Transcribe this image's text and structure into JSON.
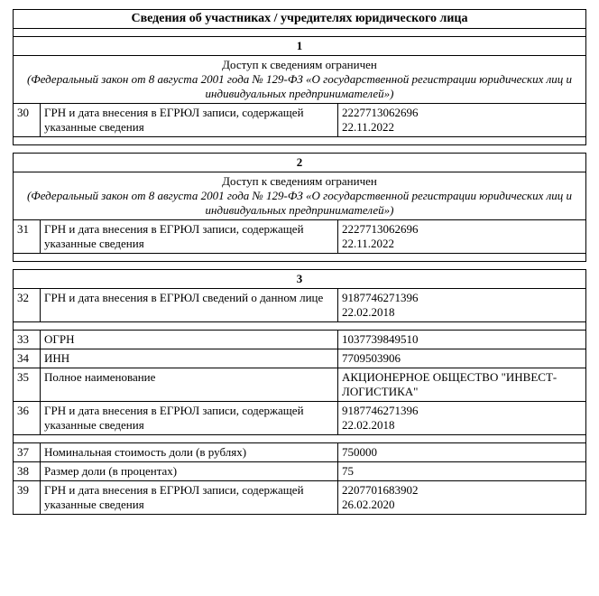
{
  "title": "Сведения об участниках / учредителях юридического лица",
  "restricted_heading": "Доступ к сведениям ограничен",
  "restricted_note": "(Федеральный закон от 8 августа 2001 года № 129-ФЗ «О государственной регистрации юридических лиц и индивидуальных предпринимателей»)",
  "p1": {
    "num": "1",
    "row30": {
      "n": "30",
      "label": "ГРН и дата внесения в ЕГРЮЛ записи, содержащей указанные сведения",
      "v1": "2227713062696",
      "v2": "22.11.2022"
    }
  },
  "p2": {
    "num": "2",
    "row31": {
      "n": "31",
      "label": "ГРН и дата внесения в ЕГРЮЛ записи, содержащей указанные сведения",
      "v1": "2227713062696",
      "v2": "22.11.2022"
    }
  },
  "p3": {
    "num": "3",
    "row32": {
      "n": "32",
      "label": "ГРН и дата внесения в ЕГРЮЛ сведений о данном лице",
      "v1": "9187746271396",
      "v2": "22.02.2018"
    },
    "row33": {
      "n": "33",
      "label": "ОГРН",
      "v": "1037739849510"
    },
    "row34": {
      "n": "34",
      "label": "ИНН",
      "v": "7709503906"
    },
    "row35": {
      "n": "35",
      "label": "Полное наименование",
      "v": "АКЦИОНЕРНОЕ ОБЩЕСТВО \"ИНВЕСТ-ЛОГИСТИКА\""
    },
    "row36": {
      "n": "36",
      "label": "ГРН и дата внесения в ЕГРЮЛ записи, содержащей указанные сведения",
      "v1": "9187746271396",
      "v2": "22.02.2018"
    },
    "row37": {
      "n": "37",
      "label": "Номинальная стоимость доли (в рублях)",
      "v": "750000"
    },
    "row38": {
      "n": "38",
      "label": "Размер доли (в процентах)",
      "v": "75"
    },
    "row39": {
      "n": "39",
      "label": "ГРН и дата внесения в ЕГРЮЛ записи, содержащей указанные сведения",
      "v1": "2207701683902",
      "v2": "26.02.2020"
    }
  }
}
